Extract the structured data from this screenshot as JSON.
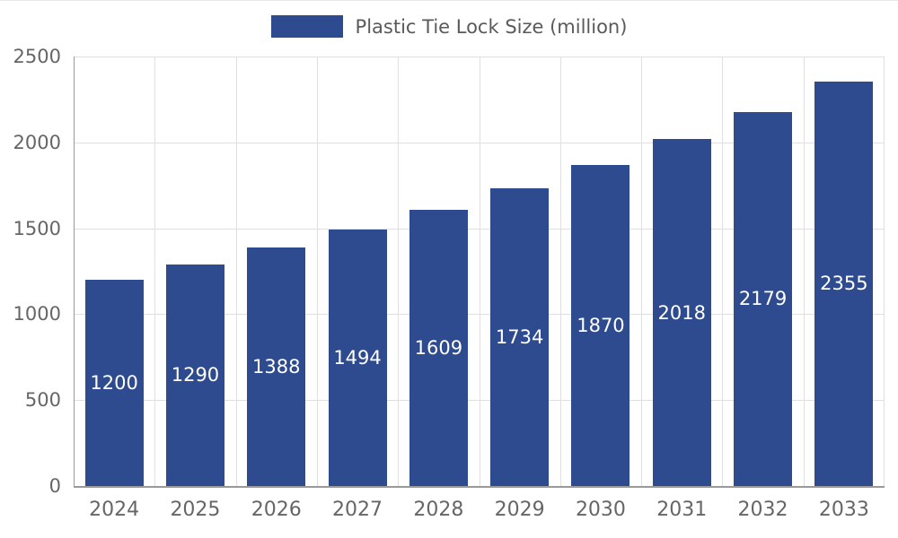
{
  "chart_data": {
    "type": "bar",
    "title": "Plastic Tie Lock Size (million)",
    "legend_entries": [
      "Plastic Tie Lock Size (million)"
    ],
    "categories": [
      "2024",
      "2025",
      "2026",
      "2027",
      "2028",
      "2029",
      "2030",
      "2031",
      "2032",
      "2033"
    ],
    "values": [
      1200,
      1290,
      1388,
      1494,
      1609,
      1734,
      1870,
      2018,
      2179,
      2355
    ],
    "xlabel": "",
    "ylabel": "",
    "ylim": [
      0,
      2500
    ],
    "yticks": [
      0,
      500,
      1000,
      1500,
      2000,
      2500
    ],
    "ytick_step": 500,
    "grid": true,
    "legend_position": "top-center",
    "value_label_position": "inside-center",
    "colors": {
      "bar": "#2F4B8F",
      "value_label": "#FFFFFF",
      "axis_text": "#666666",
      "grid_line": "#E0E0E0",
      "axis_line": "#999999",
      "legend_text": "#5A5A5A",
      "background": "#FFFFFF"
    }
  }
}
